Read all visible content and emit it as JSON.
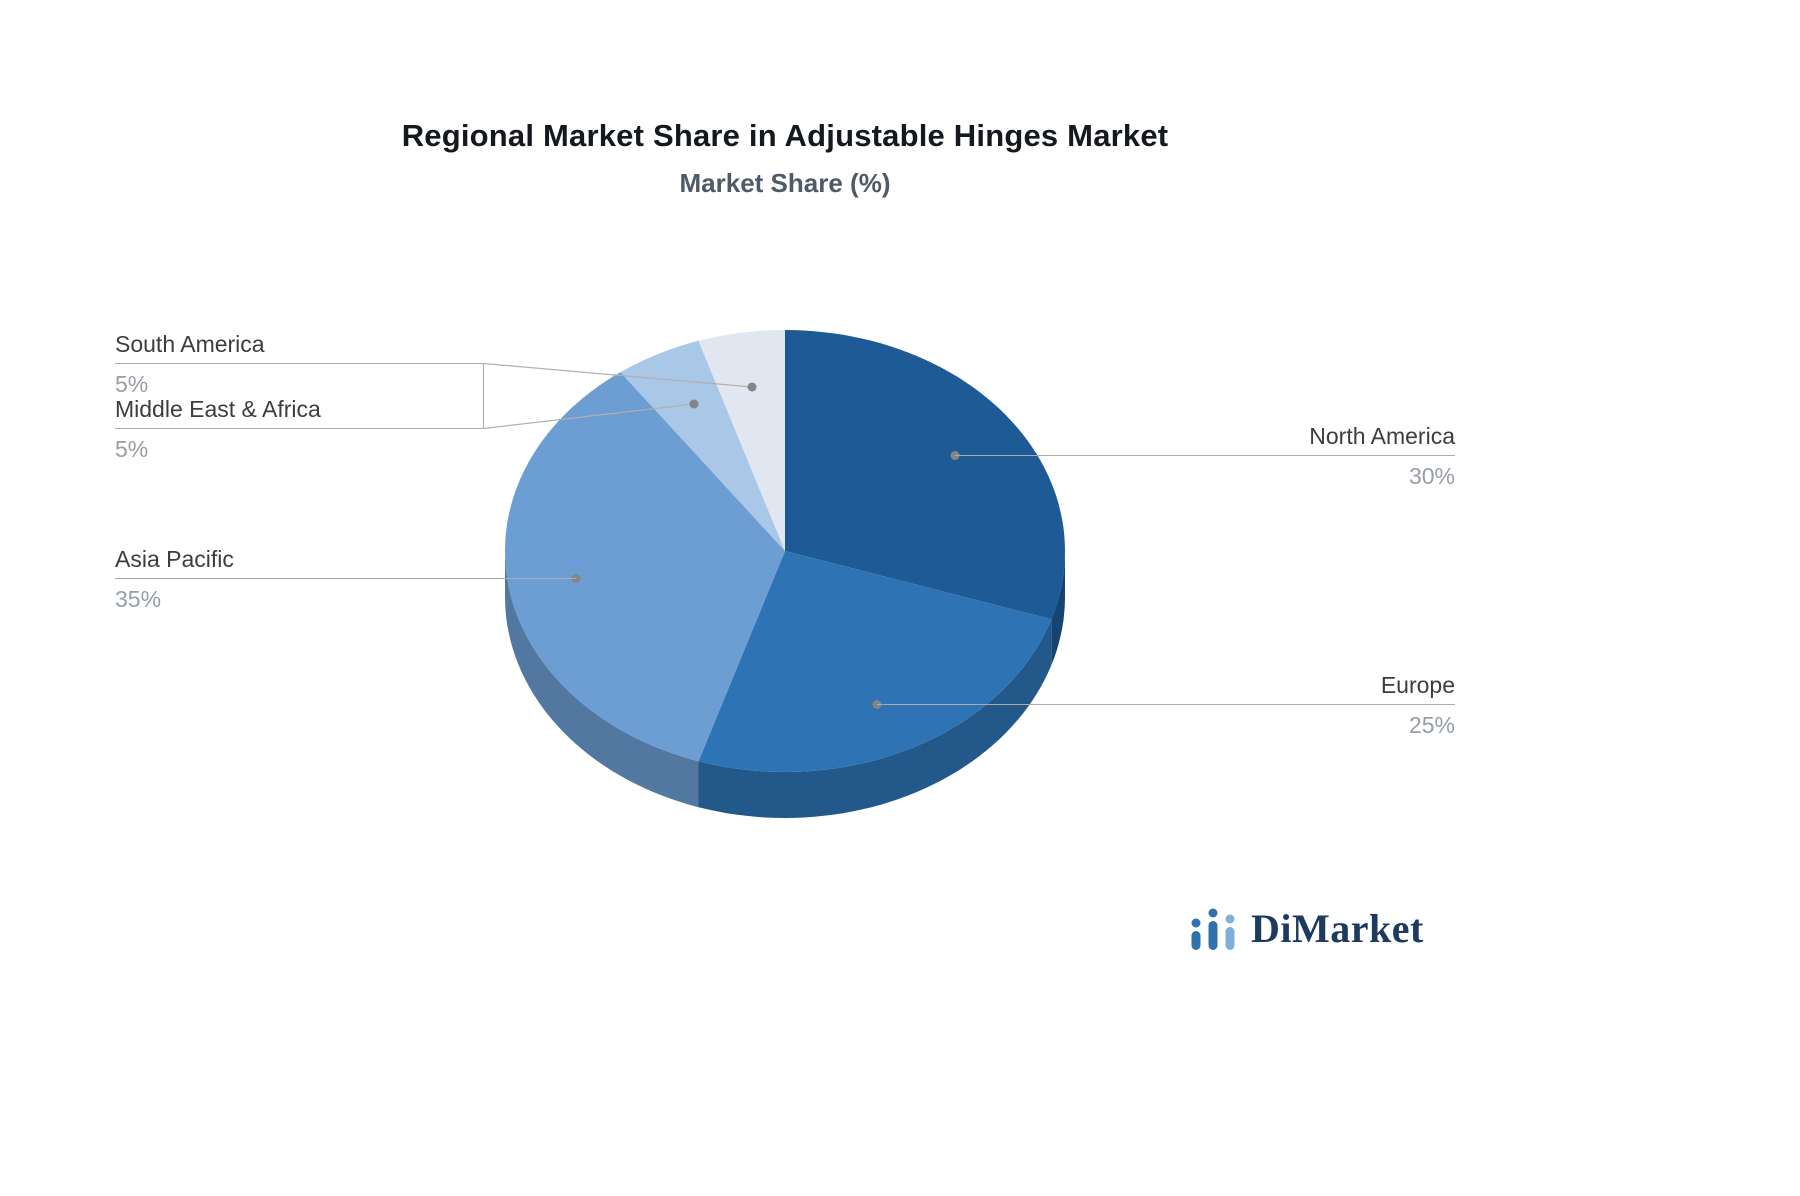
{
  "chart_data": {
    "type": "pie",
    "title": "Regional Market Share in Adjustable Hinges Market",
    "subtitle": "Market Share (%)",
    "unit": "%",
    "categories": [
      "North America",
      "Europe",
      "Asia Pacific",
      "Middle East & Africa",
      "South America"
    ],
    "values": [
      30,
      25,
      35,
      5,
      5
    ],
    "value_labels": [
      "30%",
      "25%",
      "35%",
      "5%",
      "5%"
    ],
    "colors": [
      "#1d5a96",
      "#2e74b5",
      "#6c9dd3",
      "#a9c7e7",
      "#e0e7f0"
    ],
    "start_angle_deg": 0,
    "direction": "clockwise",
    "effect_3d": true,
    "legend": "callout-labels",
    "label_name_color": "#3d3d3d",
    "label_value_color": "#989ea6",
    "leader_line_color": "#b0b0b0",
    "leader_dot_color": "#858585"
  },
  "brand": {
    "name": "DiMarket"
  }
}
